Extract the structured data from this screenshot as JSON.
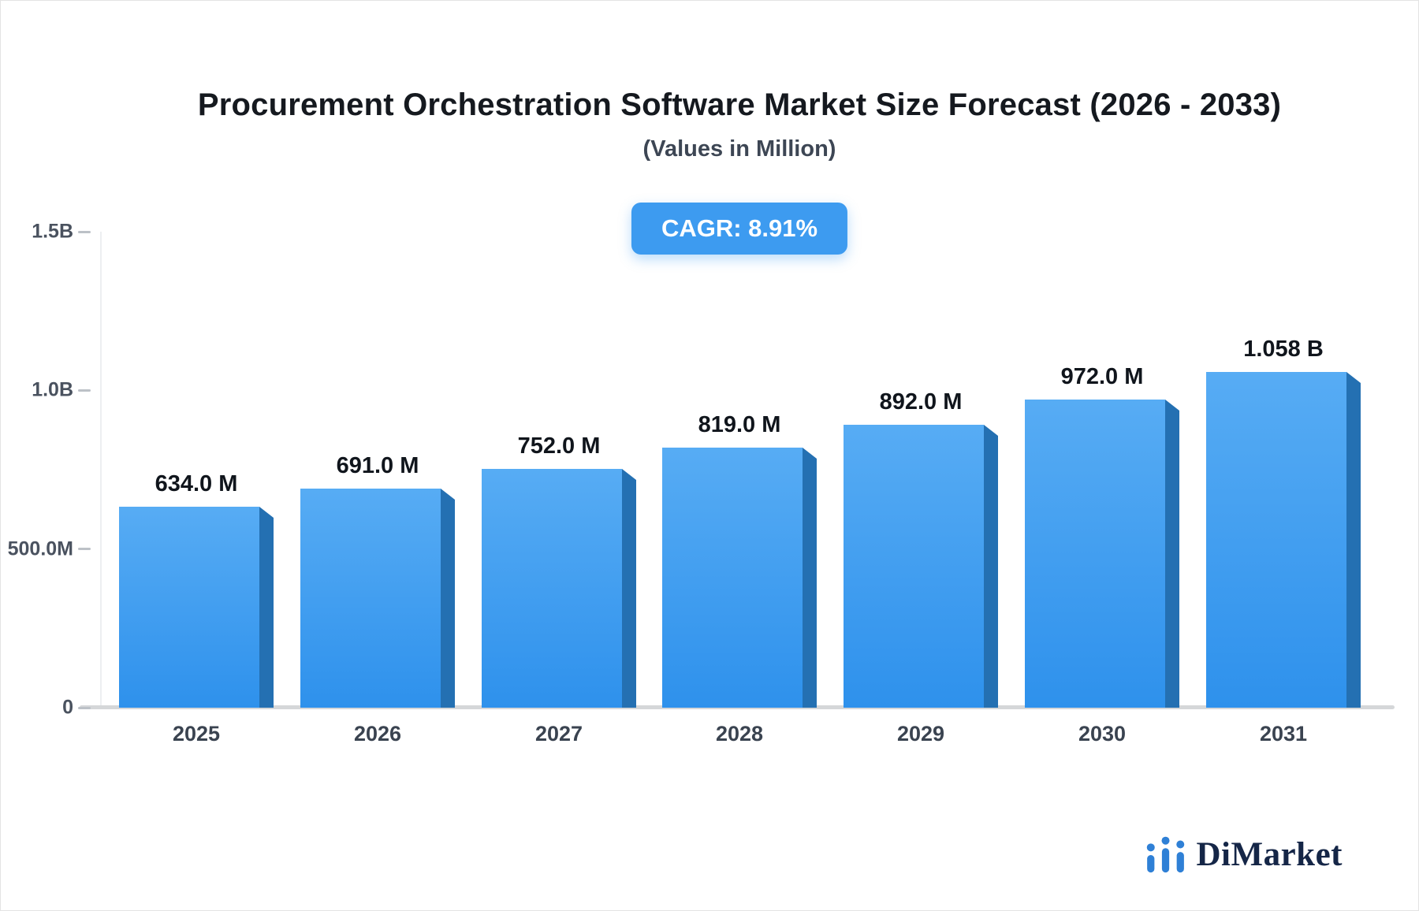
{
  "chart_data": {
    "type": "bar",
    "title": "Procurement Orchestration Software Market Size Forecast (2026 - 2033)",
    "subtitle": "(Values in Million)",
    "annotation": "CAGR: 8.91%",
    "categories": [
      "2025",
      "2026",
      "2027",
      "2028",
      "2029",
      "2030",
      "2031"
    ],
    "values": [
      634.0,
      691.0,
      752.0,
      819.0,
      892.0,
      972.0,
      1058.0
    ],
    "value_labels": [
      "634.0 M",
      "691.0 M",
      "752.0 M",
      "819.0 M",
      "892.0 M",
      "972.0 M",
      "1.058 B"
    ],
    "xlabel": "",
    "ylabel": "",
    "ylim": [
      0,
      1500
    ],
    "ytick_values": [
      1500,
      1000,
      500,
      0
    ],
    "ytick_labels": [
      "1.5B",
      "1.0B",
      "500.0M",
      "0"
    ],
    "grid": false,
    "legend": false,
    "bar_color_top": "#57ACF4",
    "bar_color_bottom": "#2E91EC",
    "bar_side_color": "#2470B2",
    "badge_color": "#3D9BF0"
  },
  "branding": {
    "logo_text": "DiMarket",
    "logo_color": "#152647",
    "icon_color": "#2F80D6"
  }
}
